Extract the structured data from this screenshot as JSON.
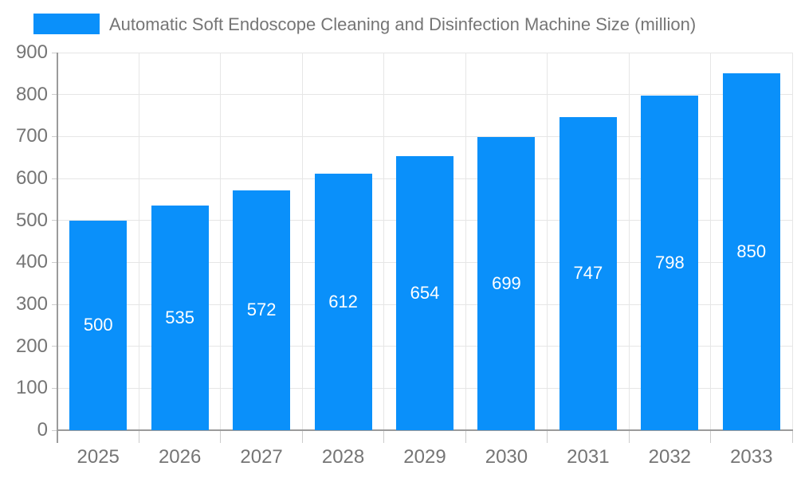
{
  "legend": {
    "swatch_color": "#0a90fa"
  },
  "chart_data": {
    "type": "bar",
    "title": "Automatic Soft Endoscope Cleaning and Disinfection Machine Size (million)",
    "categories": [
      "2025",
      "2026",
      "2027",
      "2028",
      "2029",
      "2030",
      "2031",
      "2032",
      "2033"
    ],
    "values": [
      500,
      535,
      572,
      612,
      654,
      699,
      747,
      798,
      850
    ],
    "xlabel": "",
    "ylabel": "",
    "ylim": [
      0,
      900
    ],
    "ytick_step": 100,
    "grid": true,
    "legend_position": "top-left",
    "colors": {
      "bar": "#0a90fa",
      "value_label": "#ffffff",
      "axis": "#9b9b9b",
      "tick": "#cccccc",
      "grid": "#e6e6e6",
      "text": "#757575"
    }
  }
}
